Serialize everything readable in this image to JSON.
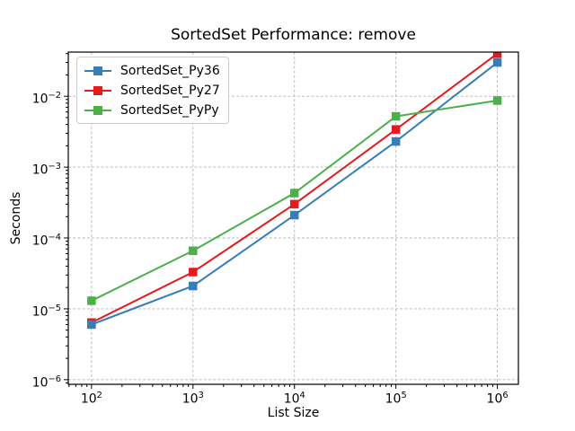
{
  "chart_data": {
    "type": "line",
    "title": "SortedSet Performance: remove",
    "xlabel": "List Size",
    "ylabel": "Seconds",
    "x_scale": "log",
    "y_scale": "log",
    "x": [
      100,
      1000,
      10000,
      100000,
      1000000
    ],
    "series": [
      {
        "name": "SortedSet_Py36",
        "color": "#377eb8",
        "values": [
          6e-06,
          2.1e-05,
          0.00021,
          0.0023,
          0.03
        ]
      },
      {
        "name": "SortedSet_Py27",
        "color": "#e41a1c",
        "values": [
          6.4e-06,
          3.3e-05,
          0.0003,
          0.0034,
          0.04
        ]
      },
      {
        "name": "SortedSet_PyPy",
        "color": "#4daf4a",
        "values": [
          1.3e-05,
          6.6e-05,
          0.00043,
          0.0052,
          0.0087
        ]
      }
    ],
    "draw_order": [
      1,
      0,
      2
    ],
    "xlim": [
      59,
      1612000
    ],
    "ylim": [
      8.6e-07,
      0.042
    ],
    "x_tick_exponents": [
      2,
      3,
      4,
      5,
      6
    ],
    "y_tick_exponents": [
      -6,
      -5,
      -4,
      -3,
      -2
    ],
    "grid": true,
    "grid_style": "dashed",
    "legend_position": "upper left",
    "marker": "square",
    "style": {
      "grid_color": "#b5b5b5",
      "spine_color": "#000000",
      "background": "#ffffff",
      "text_color": "#000000"
    }
  }
}
